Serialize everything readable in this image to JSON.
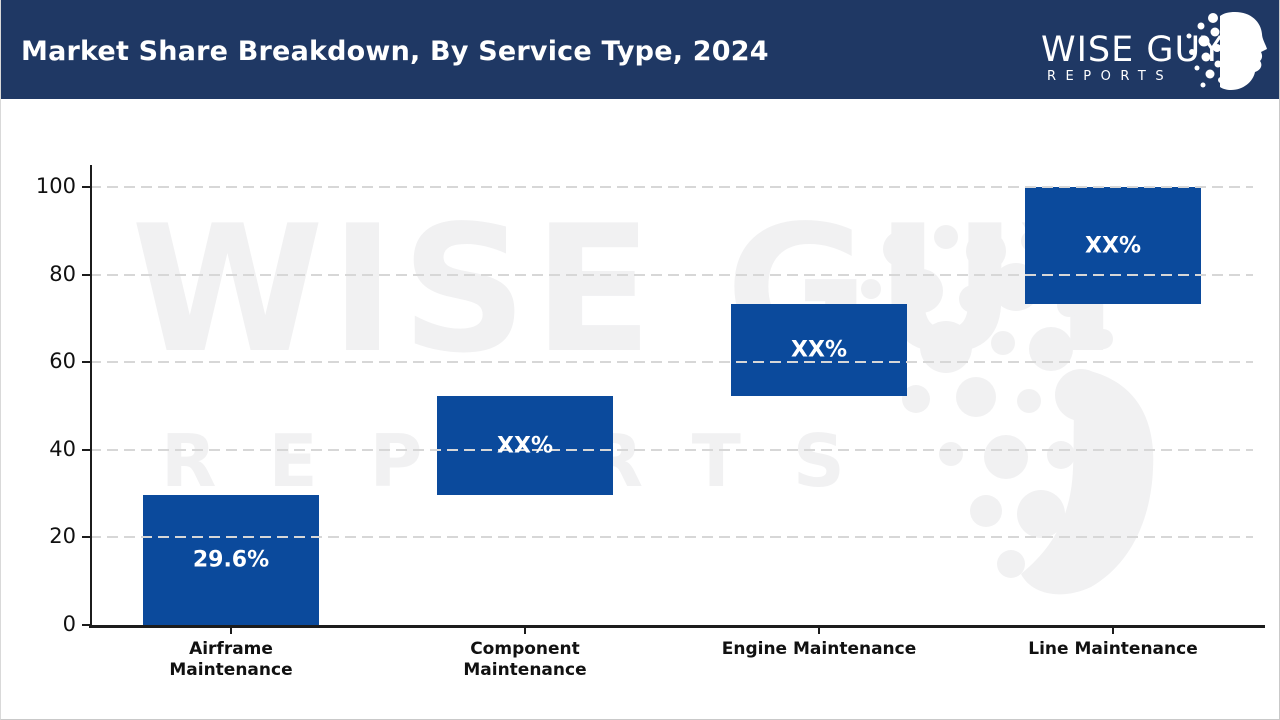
{
  "header": {
    "title": "Market Share Breakdown, By Service Type, 2024",
    "logo_line1": "WISE GUY",
    "logo_line2": "REPORTS"
  },
  "watermark": {
    "line1": "WISE GUY",
    "line2": "REPORTS"
  },
  "chart_data": {
    "type": "bar",
    "subtype": "waterfall",
    "title": "Market Share Breakdown, By Service Type, 2024",
    "categories": [
      "Airframe\nMaintenance",
      "Component\nMaintenance",
      "Engine Maintenance",
      "Line Maintenance"
    ],
    "segments": [
      {
        "category": "Airframe Maintenance",
        "start": 0,
        "end": 29.6,
        "label": "29.6%"
      },
      {
        "category": "Component Maintenance",
        "start": 29.6,
        "end": 52.2,
        "label": "XX%"
      },
      {
        "category": "Engine Maintenance",
        "start": 52.2,
        "end": 73.2,
        "label": "XX%"
      },
      {
        "category": "Line Maintenance",
        "start": 73.2,
        "end": 100,
        "label": "XX%"
      }
    ],
    "yticks": [
      0,
      20,
      40,
      60,
      80,
      100
    ],
    "ylim": [
      0,
      105
    ],
    "xlabel": "",
    "ylabel": "",
    "grid": "horizontal-dashed",
    "legend": "none",
    "colors": {
      "bar": "#0b4a9c",
      "grid": "#d7d7d7",
      "axis": "#1c1c1c",
      "bar_label_text": "#ffffff",
      "tick_text": "#111111"
    }
  },
  "colors": {
    "header_bg": "#1f3864",
    "page_bg": "#ffffff",
    "watermark": "#f1f1f2"
  }
}
